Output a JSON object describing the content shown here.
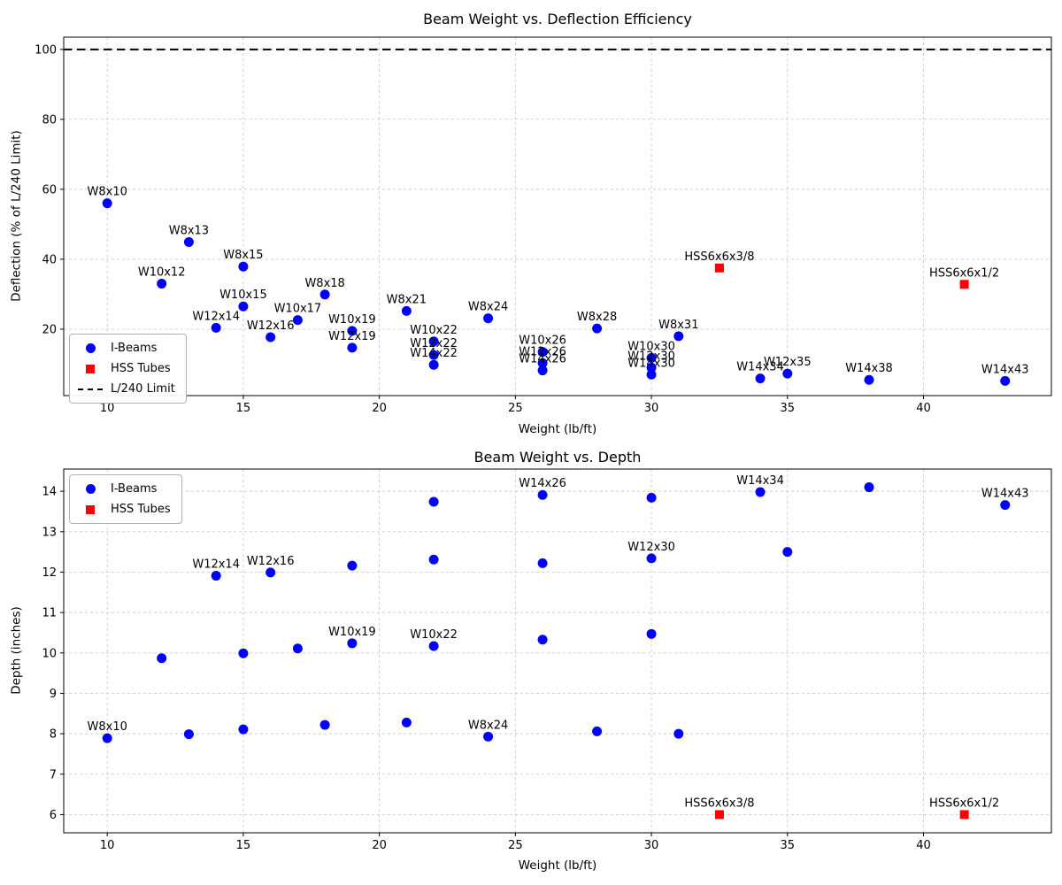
{
  "colors": {
    "ibeam": "#0000ff",
    "hss": "#ff0000",
    "limit_line": "#000000",
    "grid": "#cbcbcb"
  },
  "chart_data": [
    {
      "type": "scatter",
      "title": "Beam Weight vs. Deflection Efficiency",
      "xlabel": "Weight (lb/ft)",
      "ylabel": "Deflection (% of L/240 Limit)",
      "xlim": [
        8.4,
        44.7
      ],
      "ylim": [
        1,
        103.5
      ],
      "xticks": [
        10,
        15,
        20,
        25,
        30,
        35,
        40
      ],
      "yticks": [
        20,
        40,
        60,
        80,
        100
      ],
      "grid": true,
      "legend": {
        "position": "lower-left",
        "items": [
          {
            "label": "I-Beams",
            "marker": "circle",
            "color": "#0000ff"
          },
          {
            "label": "HSS Tubes",
            "marker": "square",
            "color": "#ff0000"
          },
          {
            "label": "L/240 Limit",
            "marker": "dashed-line",
            "color": "#000000"
          }
        ]
      },
      "hline": {
        "y": 100,
        "color": "#000000",
        "style": "dashed"
      },
      "series": [
        {
          "name": "I-Beams",
          "marker": "circle",
          "color": "#0000ff",
          "points": [
            {
              "label": "W8x10",
              "x": 10,
              "y": 56.0,
              "labeled": true
            },
            {
              "label": "W10x12",
              "x": 12,
              "y": 33.0,
              "labeled": true
            },
            {
              "label": "W8x13",
              "x": 13,
              "y": 44.9,
              "labeled": true
            },
            {
              "label": "W12x14",
              "x": 14,
              "y": 20.4,
              "labeled": true
            },
            {
              "label": "W8x15",
              "x": 15,
              "y": 37.9,
              "labeled": true
            },
            {
              "label": "W10x15",
              "x": 15,
              "y": 26.5,
              "labeled": true
            },
            {
              "label": "W12x16",
              "x": 16,
              "y": 17.7,
              "labeled": true
            },
            {
              "label": "W10x17",
              "x": 17,
              "y": 22.6,
              "labeled": true
            },
            {
              "label": "W8x18",
              "x": 18,
              "y": 29.9,
              "labeled": true
            },
            {
              "label": "W10x19",
              "x": 19,
              "y": 19.5,
              "labeled": true
            },
            {
              "label": "W12x19",
              "x": 19,
              "y": 14.7,
              "labeled": true
            },
            {
              "label": "W8x21",
              "x": 21,
              "y": 25.2,
              "labeled": true
            },
            {
              "label": "W10x22",
              "x": 22,
              "y": 16.5,
              "labeled": true
            },
            {
              "label": "W12x22",
              "x": 22,
              "y": 12.6,
              "labeled": true
            },
            {
              "label": "W14x22",
              "x": 22,
              "y": 9.8,
              "labeled": true
            },
            {
              "label": "W8x24",
              "x": 24,
              "y": 23.1,
              "labeled": true
            },
            {
              "label": "W10x26",
              "x": 26,
              "y": 13.5,
              "labeled": true
            },
            {
              "label": "W12x26",
              "x": 26,
              "y": 10.3,
              "labeled": true
            },
            {
              "label": "W14x26",
              "x": 26,
              "y": 8.2,
              "labeled": true
            },
            {
              "label": "W8x28",
              "x": 28,
              "y": 20.2,
              "labeled": true
            },
            {
              "label": "W10x30",
              "x": 30,
              "y": 11.8,
              "labeled": true
            },
            {
              "label": "W12x30",
              "x": 30,
              "y": 9.0,
              "labeled": true
            },
            {
              "label": "W14x30",
              "x": 30,
              "y": 7.0,
              "labeled": true
            },
            {
              "label": "W8x31",
              "x": 31,
              "y": 18.0,
              "labeled": true
            },
            {
              "label": "W14x34",
              "x": 34,
              "y": 5.9,
              "labeled": true
            },
            {
              "label": "W12x35",
              "x": 35,
              "y": 7.3,
              "labeled": true
            },
            {
              "label": "W14x38",
              "x": 38,
              "y": 5.5,
              "labeled": true
            },
            {
              "label": "W14x43",
              "x": 43,
              "y": 5.2,
              "labeled": true
            }
          ]
        },
        {
          "name": "HSS Tubes",
          "marker": "square",
          "color": "#ff0000",
          "points": [
            {
              "label": "HSS6x6x3/8",
              "x": 32.5,
              "y": 37.5,
              "labeled": true
            },
            {
              "label": "HSS6x6x1/2",
              "x": 41.5,
              "y": 32.8,
              "labeled": true
            }
          ]
        }
      ]
    },
    {
      "type": "scatter",
      "title": "Beam Weight vs. Depth",
      "xlabel": "Weight (lb/ft)",
      "ylabel": "Depth (inches)",
      "xlim": [
        8.4,
        44.7
      ],
      "ylim": [
        5.55,
        14.55
      ],
      "xticks": [
        10,
        15,
        20,
        25,
        30,
        35,
        40
      ],
      "yticks": [
        6,
        7,
        8,
        9,
        10,
        11,
        12,
        13,
        14
      ],
      "grid": true,
      "legend": {
        "position": "upper-left",
        "items": [
          {
            "label": "I-Beams",
            "marker": "circle",
            "color": "#0000ff"
          },
          {
            "label": "HSS Tubes",
            "marker": "square",
            "color": "#ff0000"
          }
        ]
      },
      "series": [
        {
          "name": "I-Beams",
          "marker": "circle",
          "color": "#0000ff",
          "points": [
            {
              "label": "W8x10",
              "x": 10,
              "y": 7.89,
              "labeled": true
            },
            {
              "label": "W10x12",
              "x": 12,
              "y": 9.87,
              "labeled": false
            },
            {
              "label": "W8x13",
              "x": 13,
              "y": 7.99,
              "labeled": false
            },
            {
              "label": "W12x14",
              "x": 14,
              "y": 11.91,
              "labeled": true
            },
            {
              "label": "W8x15",
              "x": 15,
              "y": 8.11,
              "labeled": false
            },
            {
              "label": "W10x15",
              "x": 15,
              "y": 9.99,
              "labeled": false
            },
            {
              "label": "W12x16",
              "x": 16,
              "y": 11.99,
              "labeled": true
            },
            {
              "label": "W10x17",
              "x": 17,
              "y": 10.11,
              "labeled": false
            },
            {
              "label": "W8x18",
              "x": 18,
              "y": 8.22,
              "labeled": false
            },
            {
              "label": "W10x19",
              "x": 19,
              "y": 10.24,
              "labeled": true
            },
            {
              "label": "W12x19",
              "x": 19,
              "y": 12.16,
              "labeled": false
            },
            {
              "label": "W8x21",
              "x": 21,
              "y": 8.28,
              "labeled": false
            },
            {
              "label": "W10x22",
              "x": 22,
              "y": 10.17,
              "labeled": true
            },
            {
              "label": "W12x22",
              "x": 22,
              "y": 12.31,
              "labeled": false
            },
            {
              "label": "W14x22",
              "x": 22,
              "y": 13.74,
              "labeled": false
            },
            {
              "label": "W8x24",
              "x": 24,
              "y": 7.93,
              "labeled": true
            },
            {
              "label": "W10x26",
              "x": 26,
              "y": 10.33,
              "labeled": false
            },
            {
              "label": "W12x26",
              "x": 26,
              "y": 12.22,
              "labeled": false
            },
            {
              "label": "W14x26",
              "x": 26,
              "y": 13.91,
              "labeled": true
            },
            {
              "label": "W8x28",
              "x": 28,
              "y": 8.06,
              "labeled": false
            },
            {
              "label": "W10x30",
              "x": 30,
              "y": 10.47,
              "labeled": false
            },
            {
              "label": "W12x30",
              "x": 30,
              "y": 12.34,
              "labeled": true
            },
            {
              "label": "W14x30",
              "x": 30,
              "y": 13.84,
              "labeled": false
            },
            {
              "label": "W8x31",
              "x": 31,
              "y": 8.0,
              "labeled": false
            },
            {
              "label": "W14x34",
              "x": 34,
              "y": 13.98,
              "labeled": true
            },
            {
              "label": "W12x35",
              "x": 35,
              "y": 12.5,
              "labeled": false
            },
            {
              "label": "W14x38",
              "x": 38,
              "y": 14.1,
              "labeled": false
            },
            {
              "label": "W14x43",
              "x": 43,
              "y": 13.66,
              "labeled": true
            }
          ]
        },
        {
          "name": "HSS Tubes",
          "marker": "square",
          "color": "#ff0000",
          "points": [
            {
              "label": "HSS6x6x3/8",
              "x": 32.5,
              "y": 6.0,
              "labeled": true
            },
            {
              "label": "HSS6x6x1/2",
              "x": 41.5,
              "y": 6.0,
              "labeled": true
            }
          ]
        }
      ]
    }
  ]
}
